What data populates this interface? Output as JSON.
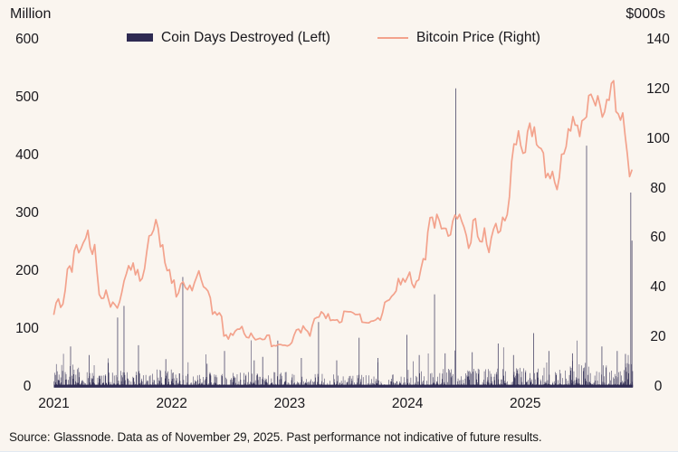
{
  "header": {
    "left_axis_title": "Million",
    "right_axis_title": "$000s"
  },
  "legend": {
    "items": [
      {
        "label": "Coin Days Destroyed (Left)",
        "swatch": "bar"
      },
      {
        "label": "Bitcoin Price (Right)",
        "swatch": "line"
      }
    ]
  },
  "source_note": "Source: Glassnode. Data as of November 29, 2025. Past performance not indicative of future results.",
  "colors": {
    "background": "#faf5ef",
    "bars": "#2e2a52",
    "price_line": "#f3a28c",
    "text": "#19181d",
    "bottom_rule": "#e2e9f1"
  },
  "chart_data": {
    "type": "combo",
    "title": "",
    "grid": "off",
    "x_axis": {
      "start_year": 2021,
      "end_label": "2025-11-29",
      "span_years": 4.913,
      "tick_years": [
        2021,
        2022,
        2023,
        2024,
        2025
      ]
    },
    "left_axis": {
      "title": "Million",
      "range": [
        0,
        600
      ],
      "ticks": [
        600,
        500,
        400,
        300,
        200,
        100,
        0
      ]
    },
    "right_axis": {
      "title": "$000s",
      "range": [
        0,
        140
      ],
      "ticks": [
        140,
        120,
        100,
        80,
        60,
        40,
        20,
        0
      ]
    },
    "series": [
      {
        "name": "Coin Days Destroyed (Left)",
        "type": "bar",
        "axis": "left",
        "unit": "million coin days destroyed per day",
        "notable_spikes": [
          {
            "t": 0.142,
            "value": 70
          },
          {
            "t": 0.3,
            "value": 55
          },
          {
            "t": 0.541,
            "value": 120
          },
          {
            "t": 0.595,
            "value": 140
          },
          {
            "t": 0.718,
            "value": 72
          },
          {
            "t": 0.95,
            "value": 48
          },
          {
            "t": 1.094,
            "value": 190
          },
          {
            "t": 1.3,
            "value": 40
          },
          {
            "t": 1.448,
            "value": 62
          },
          {
            "t": 1.7,
            "value": 46
          },
          {
            "t": 1.772,
            "value": 52
          },
          {
            "t": 1.9,
            "value": 80
          },
          {
            "t": 2.1,
            "value": 50
          },
          {
            "t": 2.246,
            "value": 112
          },
          {
            "t": 2.4,
            "value": 46
          },
          {
            "t": 2.59,
            "value": 85
          },
          {
            "t": 2.75,
            "value": 50
          },
          {
            "t": 2.995,
            "value": 90
          },
          {
            "t": 3.1,
            "value": 55
          },
          {
            "t": 3.23,
            "value": 160
          },
          {
            "t": 3.32,
            "value": 58
          },
          {
            "t": 3.41,
            "value": 516
          },
          {
            "t": 3.55,
            "value": 60
          },
          {
            "t": 3.77,
            "value": 75
          },
          {
            "t": 3.9,
            "value": 55
          },
          {
            "t": 4.07,
            "value": 93
          },
          {
            "t": 4.2,
            "value": 62
          },
          {
            "t": 4.4,
            "value": 58
          },
          {
            "t": 4.52,
            "value": 417
          },
          {
            "t": 4.65,
            "value": 70
          },
          {
            "t": 4.78,
            "value": 62
          },
          {
            "t": 4.85,
            "value": 57
          },
          {
            "t": 4.895,
            "value": 336
          },
          {
            "t": 4.905,
            "value": 253
          }
        ],
        "base_texture": {
          "seed": 20251129,
          "count": 1300,
          "min": 1.5,
          "amp": 26,
          "pow": 3.2,
          "boost_chance": 0.06,
          "boost": 2.2,
          "big_boost_chance": 0.015,
          "big_boost": 3.6,
          "era_multipliers": [
            [
              0.35,
              1.5
            ],
            [
              1.0,
              1.1
            ],
            [
              2.0,
              0.95
            ],
            [
              3.0,
              0.85
            ],
            [
              3.6,
              1.15
            ],
            [
              4.35,
              1.25
            ],
            [
              9,
              1.55
            ]
          ],
          "cap": 115
        }
      },
      {
        "name": "Bitcoin Price (Right)",
        "type": "line",
        "axis": "right",
        "unit": "USD thousands",
        "points_per_year": 52,
        "values_k": [
          29.3,
          33.9,
          35.5,
          32.1,
          33.4,
          38.9,
          47.5,
          48.8,
          46.3,
          54.8,
          57.3,
          54.1,
          55.8,
          58.1,
          59.9,
          63.2,
          56.2,
          53.5,
          57.4,
          46.7,
          37.3,
          35.7,
          35.8,
          39.0,
          35.6,
          32.2,
          34.2,
          33.1,
          31.8,
          34.3,
          38.2,
          42.8,
          45.6,
          48.9,
          47.1,
          50.0,
          45.2,
          47.3,
          42.7,
          43.8,
          47.7,
          54.7,
          60.9,
          61.3,
          63.3,
          67.5,
          64.0,
          56.5,
          57.3,
          50.1,
          46.9,
          47.3,
          41.8,
          43.1,
          36.3,
          37.9,
          41.5,
          42.4,
          40.1,
          39.2,
          41.0,
          38.8,
          41.9,
          44.3,
          46.8,
          43.2,
          40.4,
          39.7,
          38.6,
          36.0,
          29.3,
          30.3,
          29.0,
          29.9,
          28.4,
          20.5,
          21.0,
          19.3,
          21.6,
          20.8,
          22.5,
          23.3,
          23.3,
          24.4,
          21.5,
          20.0,
          19.8,
          21.7,
          20.1,
          19.0,
          19.3,
          19.6,
          19.1,
          19.2,
          20.8,
          20.9,
          16.3,
          16.7,
          16.5,
          17.1,
          17.1,
          16.8,
          16.8,
          16.5,
          16.9,
          17.9,
          20.9,
          23.0,
          23.3,
          21.8,
          24.6,
          23.2,
          22.4,
          20.5,
          24.6,
          27.5,
          28.0,
          28.2,
          30.3,
          29.5,
          27.6,
          29.5,
          26.8,
          27.0,
          26.9,
          27.1,
          25.9,
          26.3,
          30.5,
          30.4,
          30.3,
          30.3,
          29.9,
          29.2,
          29.2,
          29.4,
          26.1,
          26.0,
          25.9,
          25.8,
          26.5,
          26.6,
          27.0,
          27.9,
          26.9,
          29.9,
          34.1,
          34.7,
          35.1,
          36.5,
          37.4,
          38.7,
          43.7,
          41.2,
          43.7,
          42.3,
          44.2,
          46.3,
          41.7,
          40.0,
          42.6,
          43.2,
          47.8,
          51.7,
          51.3,
          62.4,
          68.3,
          68.4,
          64.1,
          69.6,
          67.2,
          63.8,
          64.0,
          63.9,
          60.8,
          61.4,
          66.9,
          69.3,
          67.8,
          69.6,
          66.7,
          64.3,
          61.0,
          55.9,
          58.2,
          67.2,
          67.9,
          60.7,
          58.7,
          58.5,
          64.1,
          57.5,
          54.2,
          60.0,
          63.6,
          65.9,
          62.1,
          62.9,
          68.4,
          67.0,
          69.4,
          76.7,
          91.0,
          98.0,
          97.7,
          103.3,
          97.3,
          94.2,
          94.6,
          103.0,
          106.4,
          101.0,
          104.8,
          97.7,
          96.6,
          96.1,
          94.3,
          84.4,
          86.1,
          84.0,
          86.9,
          82.5,
          79.6,
          84.5,
          93.8,
          94.0,
          96.9,
          104.1,
          103.2,
          109.0,
          105.6,
          105.5,
          101.0,
          107.3,
          108.0,
          108.9,
          117.5,
          118.0,
          115.8,
          113.4,
          117.4,
          113.5,
          108.8,
          110.9,
          115.9,
          115.6,
          122.4,
          123.5,
          111.0,
          110.1,
          107.6,
          110.5,
          101.7,
          94.0,
          84.8,
          87.4
        ]
      }
    ]
  }
}
